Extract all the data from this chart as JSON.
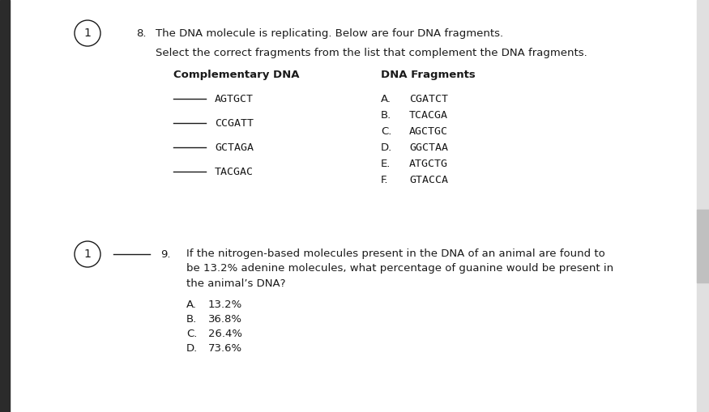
{
  "bg_color": "#f5f5f5",
  "text_color": "#1a1a1a",
  "q8_number": "8.",
  "q8_title": "The DNA molecule is replicating. Below are four DNA fragments.",
  "q8_subtitle": "Select the correct fragments from the list that complement the DNA fragments.",
  "col1_header": "Complementary DNA",
  "col2_header": "DNA Fragments",
  "comp_dna": [
    "AGTGCT",
    "CCGATT",
    "GCTAGA",
    "TACGAC"
  ],
  "fragments": [
    [
      "A.",
      "CGATCT"
    ],
    [
      "B.",
      "TCACGA"
    ],
    [
      "C.",
      "AGCTGC"
    ],
    [
      "D.",
      "GGCTAA"
    ],
    [
      "E.",
      "ATGCTG"
    ],
    [
      "F.",
      "GTACCA"
    ]
  ],
  "q9_number": "9.",
  "q9_text_line1": "If the nitrogen-based molecules present in the DNA of an animal are found to",
  "q9_text_line2": "be 13.2% adenine molecules, what percentage of guanine would be present in",
  "q9_text_line3": "the animal’s DNA?",
  "q9_options": [
    [
      "A.",
      "13.2%"
    ],
    [
      "B.",
      "36.8%"
    ],
    [
      "C.",
      "26.4%"
    ],
    [
      "D.",
      "73.6%"
    ]
  ],
  "circle_label": "1",
  "fs": 9.5,
  "fs_bold": 9.5,
  "left_dark_bar_color": "#2b2b2b",
  "left_dark_bar_width": 12
}
